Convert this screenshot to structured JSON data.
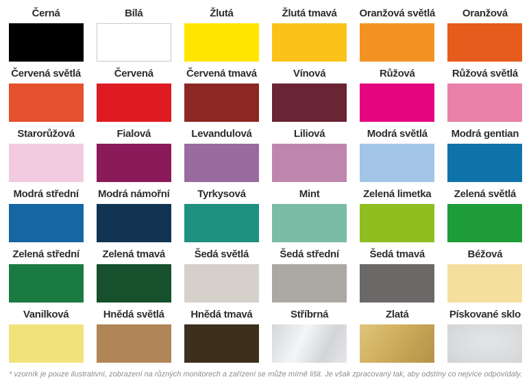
{
  "palette": {
    "swatches": [
      {
        "label": "Černá",
        "background": "#000000"
      },
      {
        "label": "Bílá",
        "background": "#ffffff",
        "border": "#c9c9c9"
      },
      {
        "label": "Žlutá",
        "background": "#ffe500"
      },
      {
        "label": "Žlutá tmavá",
        "background": "#fbc31a"
      },
      {
        "label": "Oranžová světlá",
        "background": "#f29222"
      },
      {
        "label": "Oranžová",
        "background": "#e55c1d"
      },
      {
        "label": "Červená světlá",
        "background": "#e5502e"
      },
      {
        "label": "Červená",
        "background": "#de1b22"
      },
      {
        "label": "Červená tmavá",
        "background": "#8c2823"
      },
      {
        "label": "Vínová",
        "background": "#6a2433"
      },
      {
        "label": "Růžová",
        "background": "#e5067f"
      },
      {
        "label": "Růžová světlá",
        "background": "#e981a9"
      },
      {
        "label": "Starorůžová",
        "background": "#f3cbe0"
      },
      {
        "label": "Fialová",
        "background": "#8b1a5b"
      },
      {
        "label": "Levandulová",
        "background": "#9a6b9f"
      },
      {
        "label": "Liliová",
        "background": "#bf86ad"
      },
      {
        "label": "Modrá světlá",
        "background": "#a2c5e8"
      },
      {
        "label": "Modrá gentian",
        "background": "#0f73a8"
      },
      {
        "label": "Modrá střední",
        "background": "#1566a1"
      },
      {
        "label": "Modrá námořní",
        "background": "#123453"
      },
      {
        "label": "Tyrkysová",
        "background": "#1e9180"
      },
      {
        "label": "Mint",
        "background": "#7abca5"
      },
      {
        "label": "Zelená limetka",
        "background": "#8ebe20"
      },
      {
        "label": "Zelená světlá",
        "background": "#1f9c3a"
      },
      {
        "label": "Zelená střední",
        "background": "#1b7a41"
      },
      {
        "label": "Zelená tmavá",
        "background": "#16502c"
      },
      {
        "label": "Šedá světlá",
        "background": "#d5d1ca"
      },
      {
        "label": "Šedá střední",
        "background": "#aca9a4"
      },
      {
        "label": "Šedá tmavá",
        "background": "#6b6968"
      },
      {
        "label": "Béžová",
        "background": "#f5df9f"
      },
      {
        "label": "Vanilková",
        "background": "#f2e27b"
      },
      {
        "label": "Hnědá světlá",
        "background": "#b08557"
      },
      {
        "label": "Hnědá tmavá",
        "background": "#3c2f1c"
      },
      {
        "label": "Stříbrná",
        "background": "linear-gradient(115deg, #d4d6d9 0%, #f4f5f6 40%, #d2d4d7 72%, #e6e7e9 100%)"
      },
      {
        "label": "Zlatá",
        "background": "linear-gradient(125deg, #ddc47d 0%, #d3b362 35%, #c2a052 70%, #b5924a 100%)"
      },
      {
        "label": "Pískované sklo",
        "background": "radial-gradient(ellipse at 55% 45%, #e3e5e6 0%, #d8dadc 65%, #d0d2d4 100%)"
      }
    ]
  },
  "footnote": {
    "text": "* vzorník je pouze ilustrativní, zobrazení na různých monitorech a zařízení se může mírně lišit. Je však zpracovaný tak, aby odstíny co nejvíce odpovídaly."
  },
  "colors": {
    "page_bg": "#ffffff",
    "label_text": "#2d2d2d",
    "footnote_text": "#8c8c8c",
    "white_swatch_border": "#c9c9c9"
  }
}
